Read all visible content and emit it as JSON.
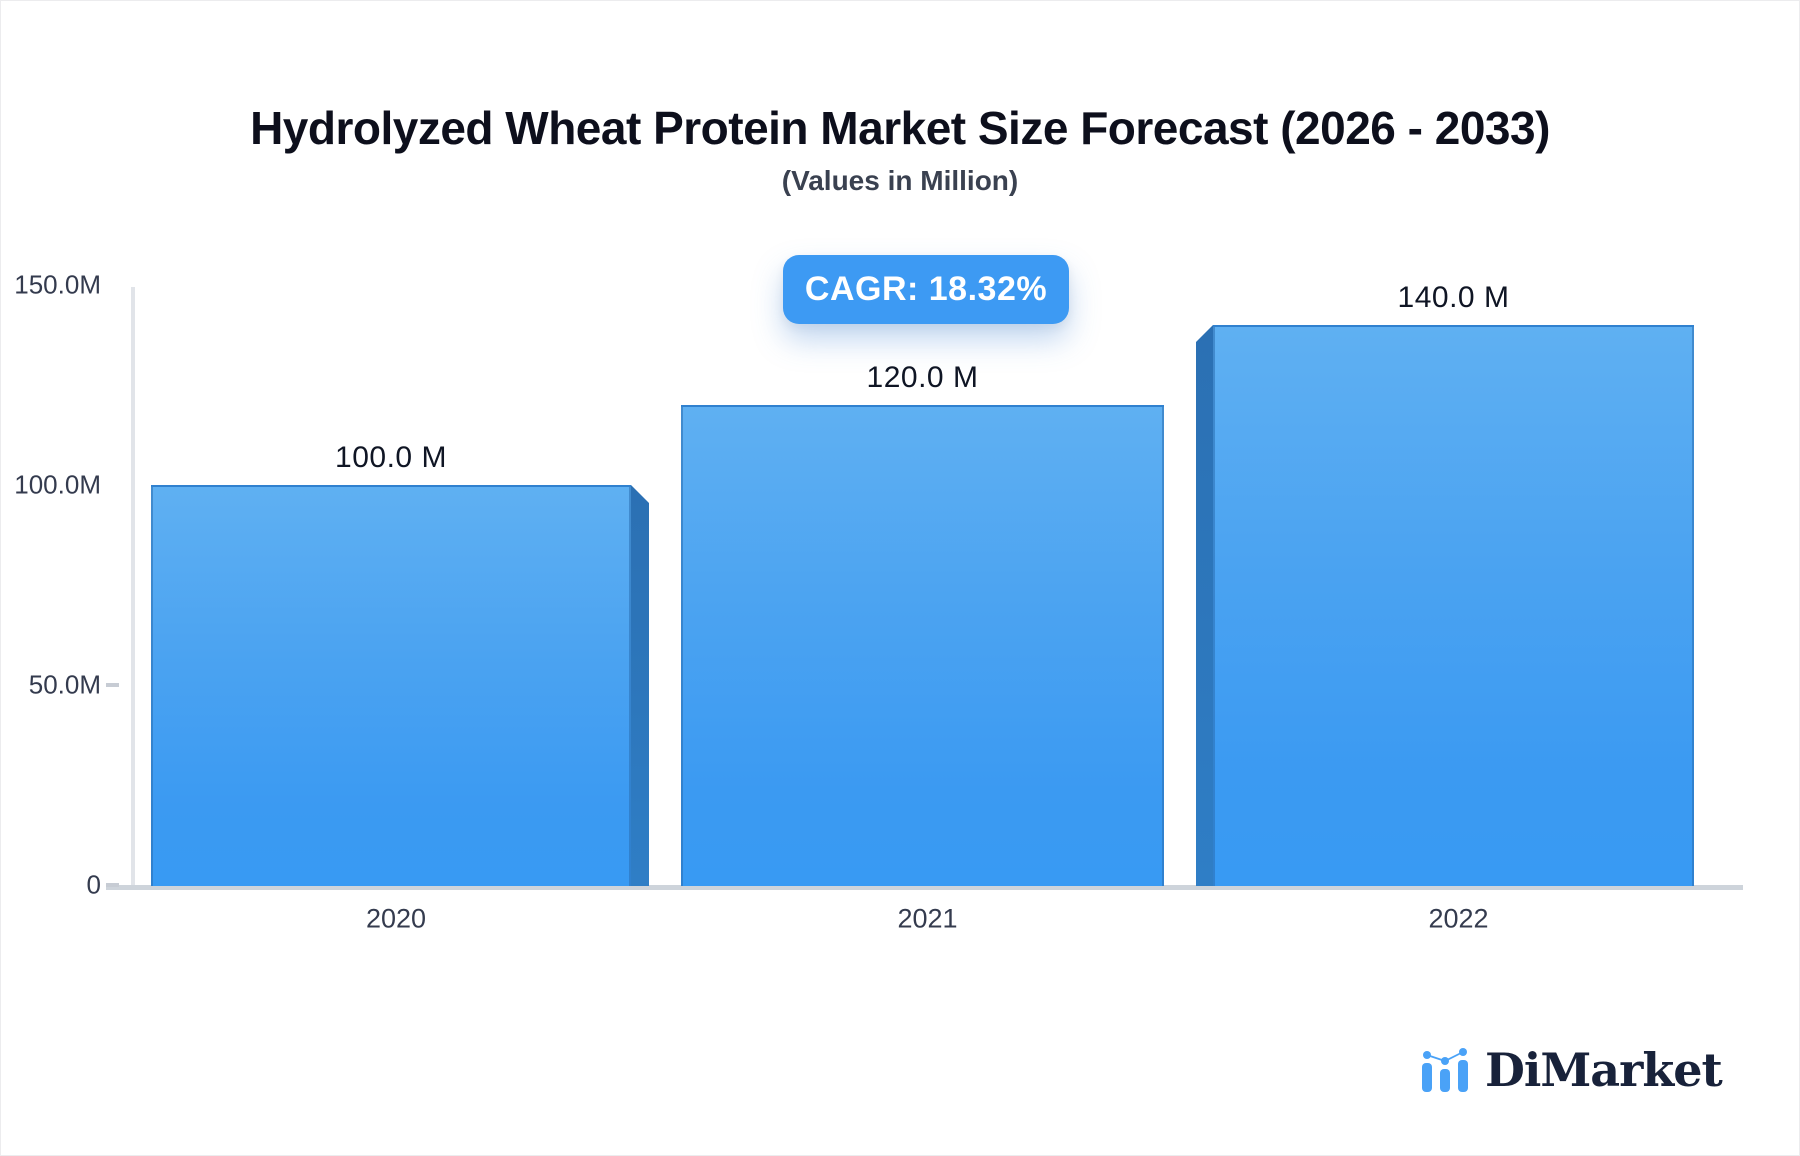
{
  "header": {
    "title": "Hydrolyzed Wheat Protein Market Size Forecast (2026 - 2033)",
    "subtitle": "(Values in Million)"
  },
  "badge": {
    "label": "CAGR: 18.32%"
  },
  "chart_data": {
    "type": "bar",
    "title": "Hydrolyzed Wheat Protein Market Size Forecast (2026 - 2033)",
    "subtitle": "(Values in Million)",
    "categories": [
      "2020",
      "2021",
      "2022"
    ],
    "values": [
      100.0,
      120.0,
      140.0
    ],
    "value_labels": [
      "100.0 M",
      "120.0 M",
      "140.0 M"
    ],
    "ytick_labels": [
      "150.0M",
      "100.0M",
      "50.0M",
      "0"
    ],
    "ytick_values": [
      150,
      100,
      50,
      0
    ],
    "ylim": [
      0,
      150
    ],
    "unit": "Million",
    "cagr": "18.32%",
    "grid": false,
    "legend": false,
    "bar_style": "3d-extruded-blue"
  },
  "logo": {
    "text": "DiMarket",
    "icon": "mini-bar-chart-sparkline"
  },
  "colors": {
    "accent": "#3d9af3",
    "bar_face_top": "#5fb0f2",
    "bar_face_bottom": "#389af3",
    "bar_side": "#2b70b3",
    "axis_line": "#e1e4e9",
    "baseline": "#ced4db",
    "text_dark": "#0d0f1c",
    "text_label": "#343b4e",
    "logo_blue": "#4aa2f7",
    "logo_navy": "#18223a"
  }
}
